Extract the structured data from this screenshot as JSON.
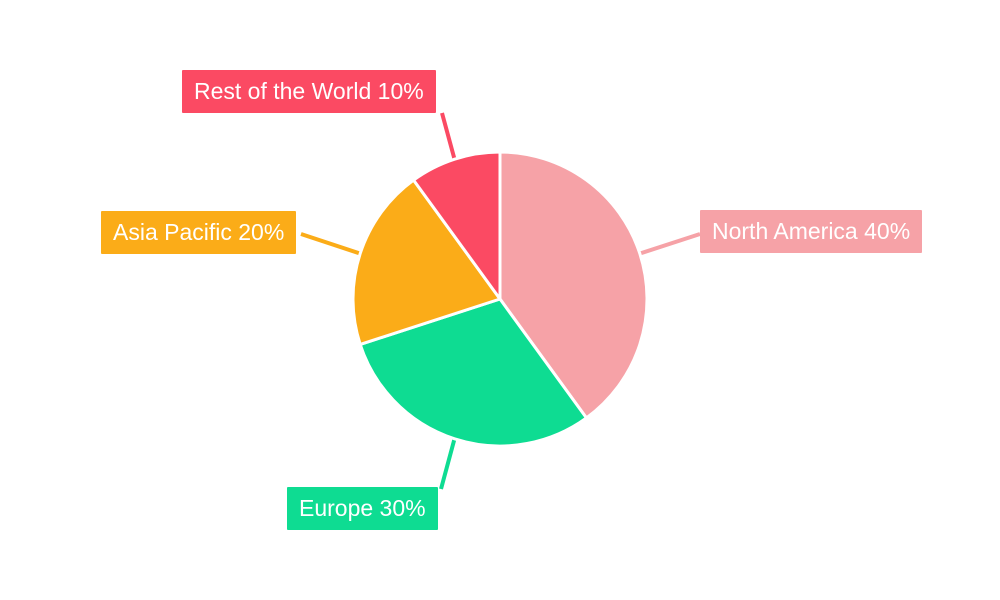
{
  "chart_data": {
    "type": "pie",
    "title": "",
    "categories": [
      "North America",
      "Europe",
      "Asia Pacific",
      "Rest of the World"
    ],
    "values": [
      40,
      30,
      20,
      10
    ],
    "unit": "%",
    "legend_position": "none",
    "start_angle_deg": 0,
    "direction": "clockwise",
    "background_color": "#FFFFFF",
    "label_text_color": "#FFFFFF",
    "slice_gap_color": "#FFFFFF",
    "slices": [
      {
        "key": "north-america",
        "label": "North America",
        "value": 40,
        "display": "North America 40%",
        "color": "#F6A2A7"
      },
      {
        "key": "europe",
        "label": "Europe",
        "value": 30,
        "display": "Europe 30%",
        "color": "#0EDC92"
      },
      {
        "key": "asia-pacific",
        "label": "Asia Pacific",
        "value": 20,
        "display": "Asia Pacific 20%",
        "color": "#FBAC18"
      },
      {
        "key": "rest-of-world",
        "label": "Rest of the World",
        "value": 10,
        "display": "Rest of the World 10%",
        "color": "#FB4A63"
      }
    ]
  }
}
